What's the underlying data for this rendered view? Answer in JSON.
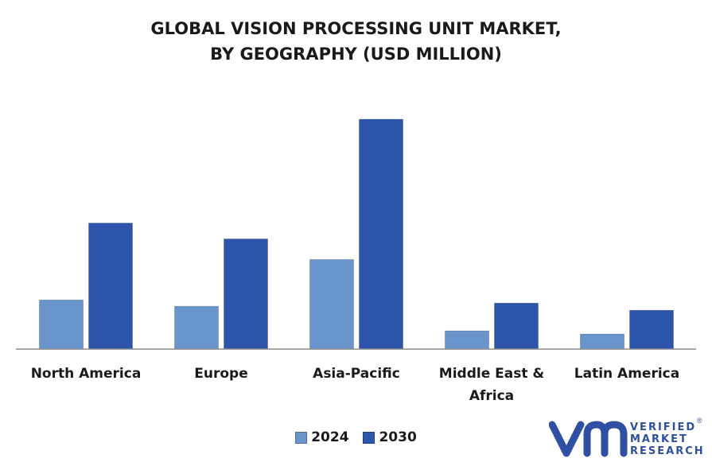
{
  "title_lines": [
    "GLOBAL VISION PROCESSING UNIT MARKET,",
    "BY GEOGRAPHY (USD MILLION)"
  ],
  "colors": {
    "s2024": "#6a95cc",
    "s2030": "#2d55ac",
    "baseline": "#8c8c8c",
    "text": "#1a1a1a",
    "brand": "#2f4fa2"
  },
  "chart_data": {
    "type": "bar",
    "title": "GLOBAL VISION PROCESSING UNIT MARKET, BY GEOGRAPHY (USD MILLION)",
    "categories": [
      "North America",
      "Europe",
      "Asia-Pacific",
      "Middle East & Africa",
      "Latin America"
    ],
    "series": [
      {
        "name": "2024",
        "values": [
          62,
          54,
          113,
          23,
          19
        ]
      },
      {
        "name": "2030",
        "values": [
          159,
          139,
          290,
          58,
          49
        ]
      }
    ],
    "ylim": [
      0,
      300
    ],
    "grid": false,
    "legend": "bottom"
  },
  "legend": {
    "items": [
      "2024",
      "2030"
    ]
  },
  "logo": {
    "lines": [
      "VERIFIED",
      "MARKET",
      "RESEARCH"
    ],
    "mark": "®",
    "icon": "vmr-logo-icon"
  }
}
